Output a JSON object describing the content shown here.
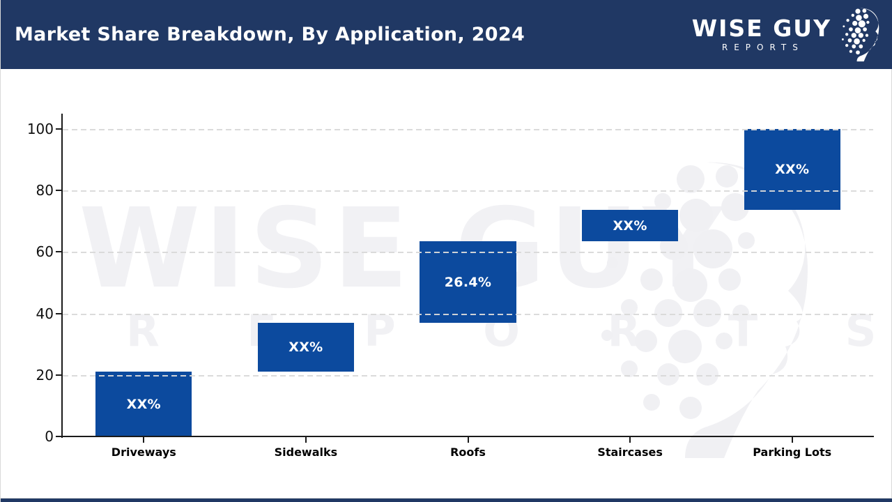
{
  "header": {
    "title": "Market Share Breakdown, By Application, 2024",
    "bg_color": "#203864",
    "logo": {
      "line1": "WISE GUY",
      "line2": "REPORTS"
    }
  },
  "watermark": {
    "line1": "WISE GUY",
    "line2": "REPORTS",
    "color": "#f1f1f4"
  },
  "footer": {
    "bar_color": "#203864"
  },
  "chart_data": {
    "type": "bar",
    "subtype": "waterfall",
    "title": "Market Share Breakdown, By Application, 2024",
    "categories": [
      "Driveways",
      "Sidewalks",
      "Roofs",
      "Staircases",
      "Parking Lots"
    ],
    "segments": [
      {
        "category": "Driveways",
        "start": 0,
        "end": 21,
        "label": "XX%"
      },
      {
        "category": "Sidewalks",
        "start": 21,
        "end": 37,
        "label": "XX%"
      },
      {
        "category": "Roofs",
        "start": 37,
        "end": 63.4,
        "label": "26.4%"
      },
      {
        "category": "Staircases",
        "start": 63.4,
        "end": 73.6,
        "label": "XX%"
      },
      {
        "category": "Parking Lots",
        "start": 73.6,
        "end": 100,
        "label": "XX%"
      }
    ],
    "xlabel": "",
    "ylabel": "",
    "ylim": [
      0,
      100
    ],
    "yticks": [
      0,
      20,
      40,
      60,
      80,
      100
    ],
    "grid": "horizontal-dashed-over-bars",
    "legend": "none",
    "bar_color": "#0c4a9e",
    "bar_width_fraction": 0.595,
    "label_color": "#ffffff",
    "gridline_color": "#d9d9d9",
    "axis_color": "#1a1a1a"
  }
}
